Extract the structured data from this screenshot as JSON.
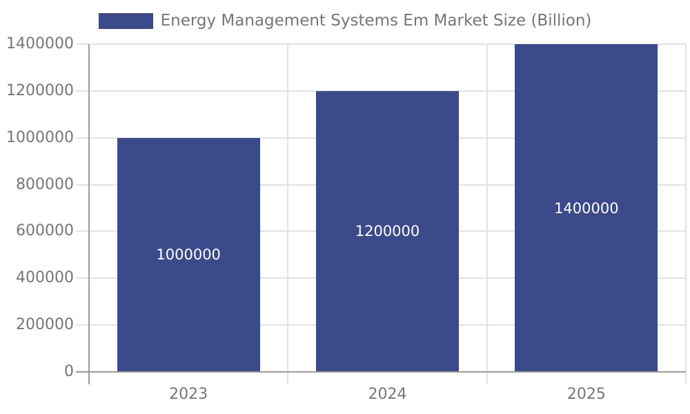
{
  "chart_data": {
    "type": "bar",
    "title": "Energy Management Systems Em Market Size (Billion)",
    "legend_position": "top-center",
    "categories": [
      "2023",
      "2024",
      "2025"
    ],
    "series": [
      {
        "name": "Energy Management Systems Em Market Size (Billion)",
        "values": [
          1000000,
          1200000,
          1400000
        ]
      }
    ],
    "bar_value_labels": [
      "1000000",
      "1200000",
      "1400000"
    ],
    "xlabel": "",
    "ylabel": "",
    "ylim": [
      0,
      1400000
    ],
    "yticks": [
      0,
      200000,
      400000,
      600000,
      800000,
      1000000,
      1200000,
      1400000
    ],
    "grid": true,
    "colors": {
      "bar": "#3A4A8B",
      "bar_label_text": "#FFFFFF",
      "title_text": "#767676",
      "axis_text": "#767676",
      "axis_line": "#9B9B9B",
      "gridline": "#E2E2E2",
      "background": "#FFFFFF"
    }
  }
}
